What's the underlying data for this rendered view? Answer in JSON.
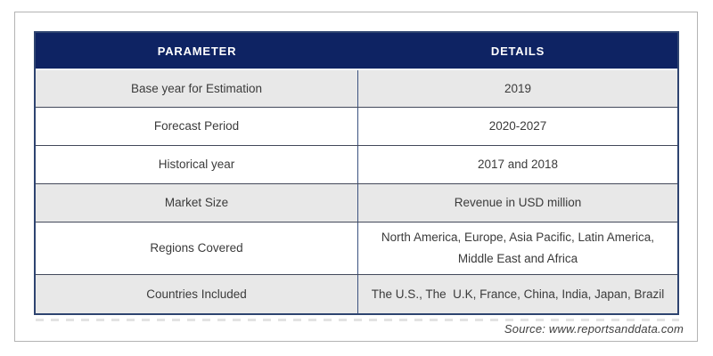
{
  "chart_data": {
    "type": "table",
    "columns": [
      "PARAMETER",
      "DETAILS"
    ],
    "rows": [
      {
        "parameter": "Base year for Estimation",
        "details": "2019"
      },
      {
        "parameter": "Forecast Period",
        "details": "2020-2027"
      },
      {
        "parameter": "Historical year",
        "details": "2017 and 2018"
      },
      {
        "parameter": "Market Size",
        "details": "Revenue in USD million"
      },
      {
        "parameter": "Regions Covered",
        "details": "North America, Europe, Asia Pacific, Latin America, Middle East and Africa"
      },
      {
        "parameter": "Countries Included",
        "details": "The U.S., The  U.K, France, China, India, Japan, Brazil"
      }
    ],
    "source": "Source: www.reportsanddata.com"
  },
  "colors": {
    "header_bg": "#0e2363",
    "header_text": "#ffffff",
    "row_alt_bg": "#e8e8e8",
    "row_bg": "#ffffff",
    "table_border": "#2e4470",
    "row_divider": "#42485a",
    "column_divider": "#3c5380",
    "cell_text": "#3b3b3b",
    "source_text": "#404040",
    "frame_border": "#b3b3b3"
  }
}
